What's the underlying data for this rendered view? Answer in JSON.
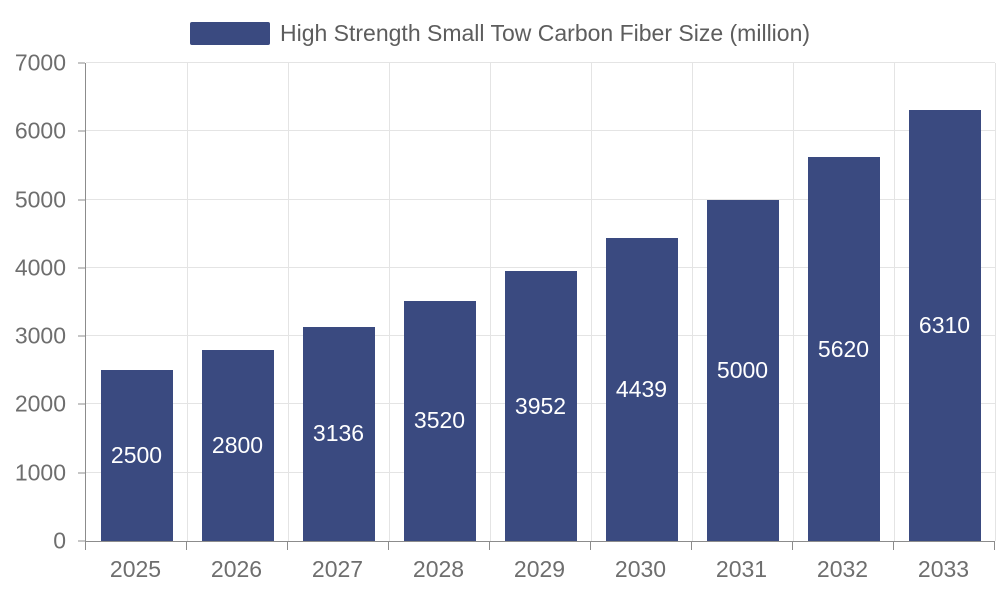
{
  "legend": {
    "label": "High Strength Small Tow Carbon Fiber Size (million)"
  },
  "chart_data": {
    "type": "bar",
    "title": "High Strength Small Tow Carbon Fiber Size (million)",
    "categories": [
      "2025",
      "2026",
      "2027",
      "2028",
      "2029",
      "2030",
      "2031",
      "2032",
      "2033"
    ],
    "values": [
      2500,
      2800,
      3136,
      3520,
      3952,
      4439,
      5000,
      5620,
      6310
    ],
    "xlabel": "",
    "ylabel": "",
    "ylim": [
      0,
      7000
    ],
    "y_tick_step": 1000,
    "y_tick_labels": [
      "0",
      "1000",
      "2000",
      "3000",
      "4000",
      "5000",
      "6000",
      "7000"
    ],
    "grid": true,
    "legend_position": "top",
    "colors": {
      "bar": "#3a4a80",
      "bar_label": "#ffffff",
      "gridline": "#e4e4e4",
      "axis_line": "#8c8c8c",
      "axis_text": "#6e6e6e",
      "legend_text": "#5d5d5d"
    }
  }
}
